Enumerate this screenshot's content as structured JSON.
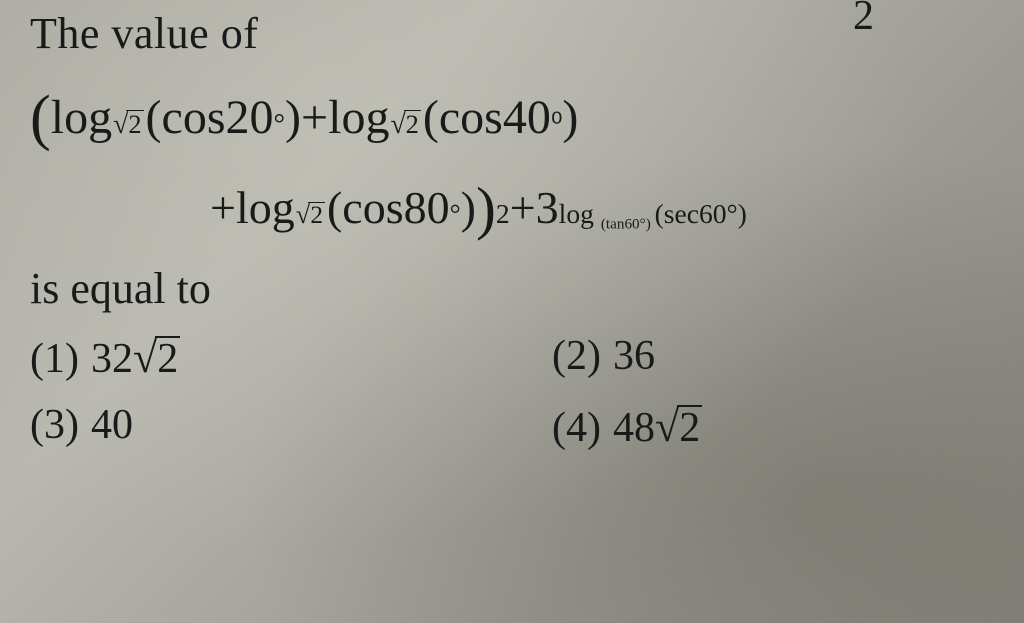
{
  "page": {
    "top_right_number": "2",
    "background_color": "#a8a8a0",
    "text_color": "#1a1a1a"
  },
  "problem": {
    "intro": "The value of",
    "expression_line1": {
      "open_paren": "(",
      "term1_log": "log",
      "term1_base_sqrt": "√",
      "term1_base_val": "2",
      "term1_arg_open": "(",
      "term1_arg_func": "cos",
      "term1_arg_val": "20",
      "term1_arg_deg": "°",
      "term1_arg_close": ")",
      "plus1": " + ",
      "term2_log": "log",
      "term2_base_sqrt": "√",
      "term2_base_val": "2",
      "term2_arg_open": "(",
      "term2_arg_func": "cos",
      "term2_arg_val": "40",
      "term2_arg_deg": "⁰",
      "term2_arg_close": ")"
    },
    "expression_line2": {
      "plus": "+ ",
      "term3_log": "log",
      "term3_base_sqrt": "√",
      "term3_base_val": "2",
      "term3_arg_open": "(",
      "term3_arg_func": "cos",
      "term3_arg_val": "80",
      "term3_arg_deg": "°",
      "term3_arg_close": ")",
      "close_paren": ")",
      "squared": "2",
      "plus2": " + ",
      "base3": "3",
      "exp_log": "log",
      "exp_sub_open": "(",
      "exp_sub_func": "tan",
      "exp_sub_val": "60",
      "exp_sub_deg": "°",
      "exp_sub_close": ")",
      "exp_arg_open": "(",
      "exp_arg_func": "sec",
      "exp_arg_val": "60",
      "exp_arg_deg": "°",
      "exp_arg_close": ")"
    },
    "conclusion": "is equal to"
  },
  "options": {
    "opt1_num": "(1)",
    "opt1_coeff": "32",
    "opt1_sqrt": "√",
    "opt1_sqrt_val": "2",
    "opt2_num": "(2)",
    "opt2_val": "36",
    "opt3_num": "(3)",
    "opt3_val": "40",
    "opt4_num": "(4)",
    "opt4_coeff": "48",
    "opt4_sqrt": "√",
    "opt4_sqrt_val": "2"
  }
}
